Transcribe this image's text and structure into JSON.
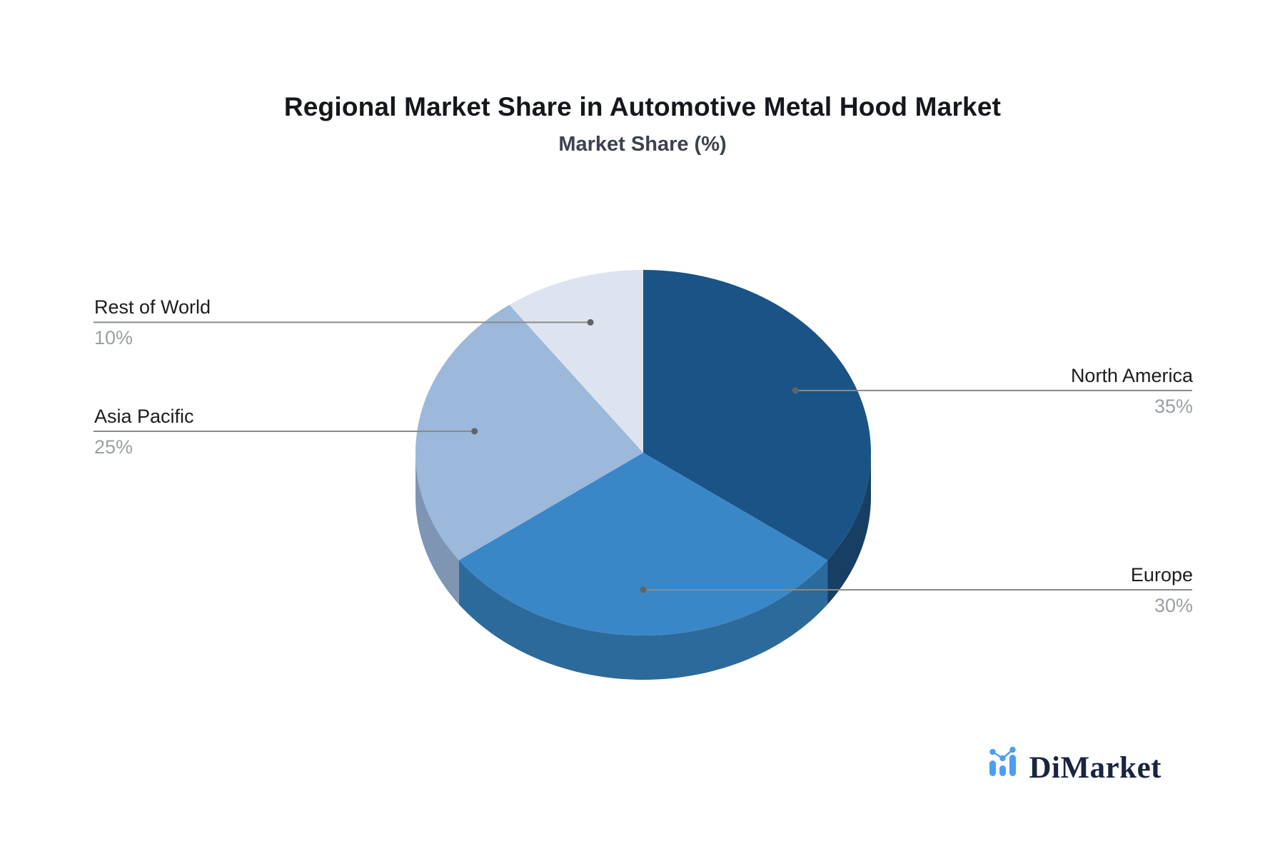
{
  "title": "Regional Market Share in Automotive Metal Hood Market",
  "subtitle": "Market Share (%)",
  "brand": {
    "name": "DiMarket",
    "icon": "bar-line-chart-icon",
    "icon_color": "#4aa0f0",
    "text_color": "#1a2440"
  },
  "chart_data": {
    "type": "pie",
    "title": "Regional Market Share in Automotive Metal Hood Market",
    "subtitle": "Market Share (%)",
    "unit": "%",
    "effect_3d": true,
    "start_angle_deg": 0,
    "direction": "clockwise",
    "legend_position": "callout-labels",
    "slices": [
      {
        "label": "North America",
        "value": 35,
        "display": "35%",
        "color": "#1a5385",
        "side_color": "#173f63",
        "label_side": "right"
      },
      {
        "label": "Europe",
        "value": 30,
        "display": "30%",
        "color": "#3a87c8",
        "side_color": "#2d6a9c",
        "label_side": "right"
      },
      {
        "label": "Asia Pacific",
        "value": 25,
        "display": "25%",
        "color": "#9cb8da",
        "side_color": "#7e95b4",
        "label_side": "left"
      },
      {
        "label": "Rest of World",
        "value": 10,
        "display": "10%",
        "color": "#dee4ef",
        "side_color": "#b8c2d4",
        "label_side": "left"
      }
    ],
    "leader_line_color": "#8a8a8a",
    "anchor_dot_color": "#5f6368",
    "label_color": "#1d1d1d",
    "value_color": "#9aa0a6",
    "background": "#ffffff"
  }
}
